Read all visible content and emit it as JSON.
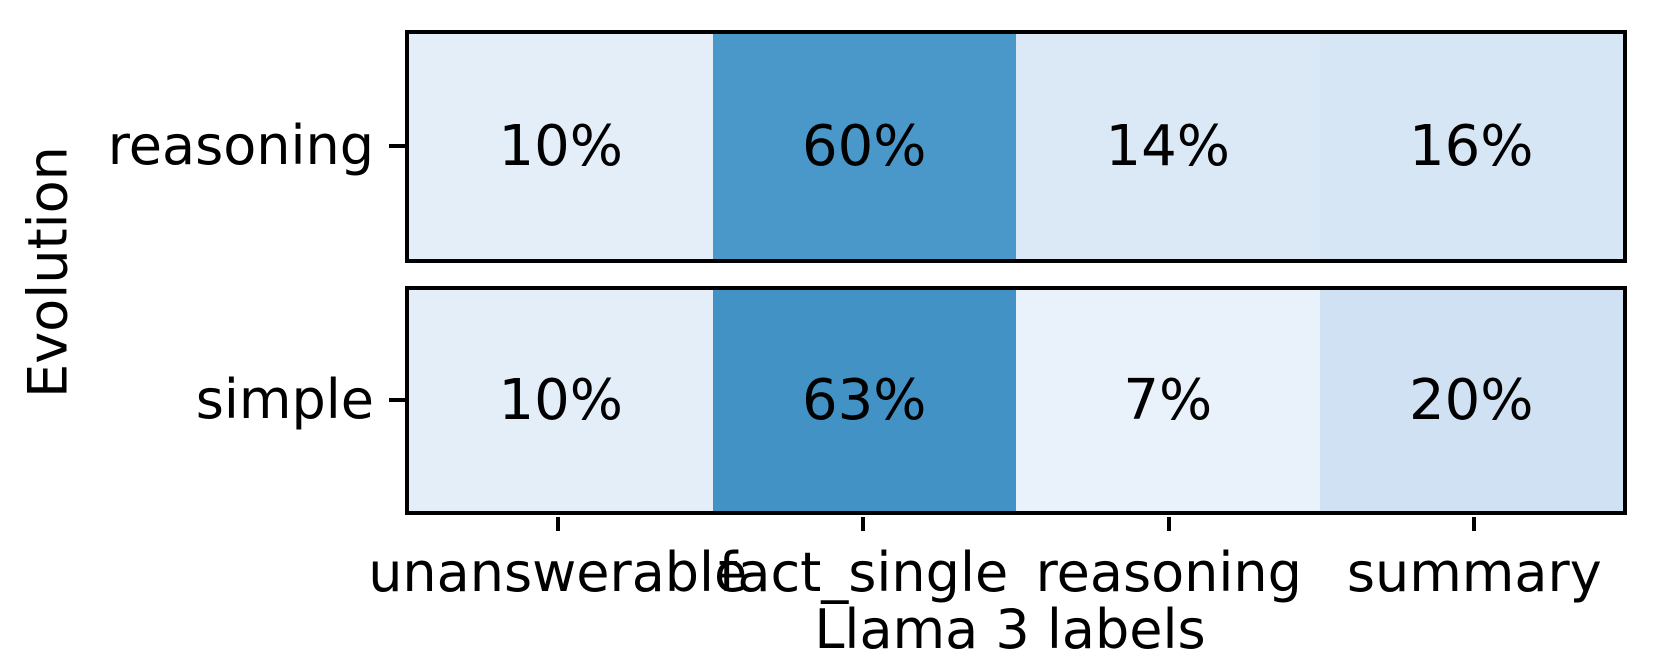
{
  "chart_data": {
    "type": "heatmap",
    "title": "",
    "xlabel": "Llama 3 labels",
    "ylabel": "Evolution",
    "columns": [
      "unanswerable",
      "fact_single",
      "reasoning",
      "summary"
    ],
    "rows": [
      "reasoning",
      "simple"
    ],
    "values_percent": [
      [
        10,
        60,
        14,
        16
      ],
      [
        10,
        63,
        7,
        20
      ]
    ],
    "cell_labels": [
      [
        "10%",
        "60%",
        "14%",
        "16%"
      ],
      [
        "10%",
        "63%",
        "7%",
        "20%"
      ]
    ],
    "cell_colors": [
      [
        "#e3eef9",
        "#4a98c9",
        "#dbe9f6",
        "#d7e6f4"
      ],
      [
        "#e3eef9",
        "#4292c6",
        "#e9f2fa",
        "#cfe1f2"
      ]
    ],
    "colormap": "Blues",
    "value_range": [
      0,
      100
    ],
    "legend": "none",
    "grid": false,
    "row_border_color": "#000000",
    "text_color": "#000000",
    "background_color": "#ffffff"
  }
}
